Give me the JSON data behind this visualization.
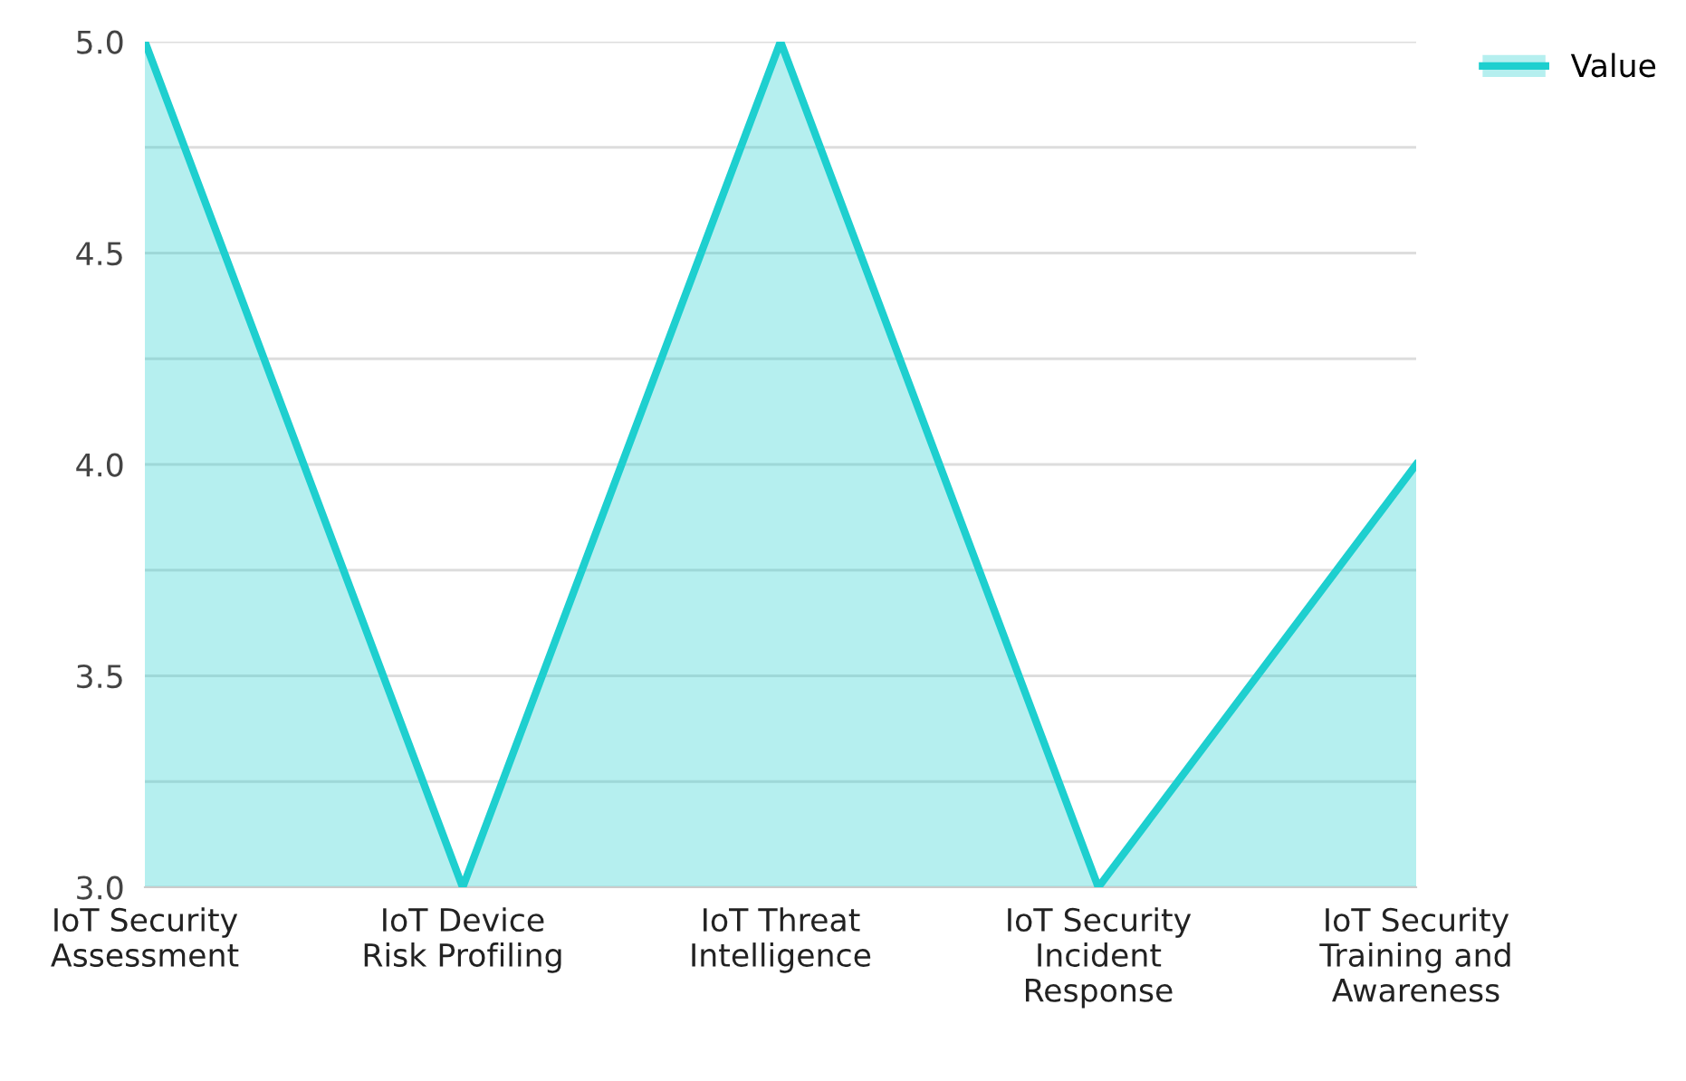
{
  "chart_data": {
    "type": "area",
    "categories": [
      "IoT Security Assessment",
      "IoT Device Risk Profiling",
      "IoT Threat Intelligence",
      "IoT Security Incident Response",
      "IoT Security Training and Awareness"
    ],
    "series": [
      {
        "name": "Value",
        "color": "#1ecfcf",
        "values": [
          5,
          3,
          5,
          3,
          4
        ]
      }
    ],
    "ylim": [
      3,
      5
    ],
    "yticks": [
      {
        "value": 3,
        "label": "3.0"
      },
      {
        "value": 3.25,
        "label": null
      },
      3.5,
      {
        "value": 3.75,
        "label": null
      },
      {
        "value": 4,
        "label": "4.0"
      },
      {
        "value": 4.25,
        "label": null
      },
      4.5,
      {
        "value": 4.75,
        "label": null
      },
      {
        "value": 5,
        "label": "5.0"
      }
    ],
    "grid": "y",
    "legend": "top right",
    "marker": "none",
    "line_style": "solid"
  }
}
